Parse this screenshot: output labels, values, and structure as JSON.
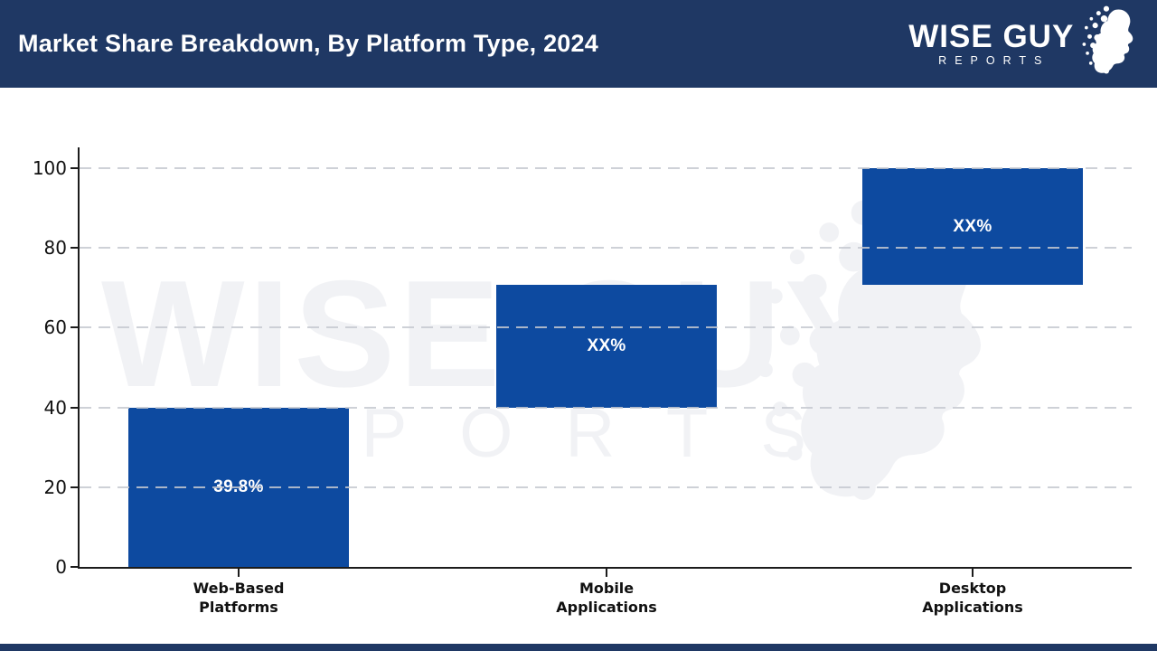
{
  "header": {
    "title": "Market Share Breakdown, By Platform Type, 2024",
    "logo": {
      "line1": "WISE GUY",
      "line2": "REPORTS",
      "icon": "wise-guy-head-icon"
    }
  },
  "watermark": {
    "line1": "WISE GUY",
    "line2": "REPORTS",
    "icon": "wise-guy-head-icon"
  },
  "chart_data": {
    "type": "bar",
    "style": "stacked-waterfall",
    "title": "Market Share Breakdown, By Platform Type, 2024",
    "categories": [
      "Web-Based Platforms",
      "Mobile Applications",
      "Desktop Applications"
    ],
    "categories_lines": [
      [
        "Web-Based",
        "Platforms"
      ],
      [
        "Mobile",
        "Applications"
      ],
      [
        "Desktop",
        "Applications"
      ]
    ],
    "series": [
      {
        "name": "Web-Based Platforms",
        "start": 0,
        "end": 39.8,
        "label": "39.8%"
      },
      {
        "name": "Mobile Applications",
        "start": 39.8,
        "end": 70.7,
        "label": "XX%"
      },
      {
        "name": "Desktop Applications",
        "start": 70.7,
        "end": 100,
        "label": "XX%"
      }
    ],
    "xlabel": "",
    "ylabel": "",
    "ylim": [
      0,
      100
    ],
    "yticks": [
      0,
      20,
      40,
      60,
      80,
      100
    ],
    "grid": "horizontal-dashed, drawn above bars",
    "legend": "none",
    "colors": {
      "bar": "#0d4aa0",
      "bar_label": "#ffffff",
      "header_bg": "#1f3864",
      "header_text": "#ffffff",
      "grid_line": "#c6c9d0",
      "axis": "#1c1c1c",
      "watermark": "#f1f2f5"
    }
  }
}
